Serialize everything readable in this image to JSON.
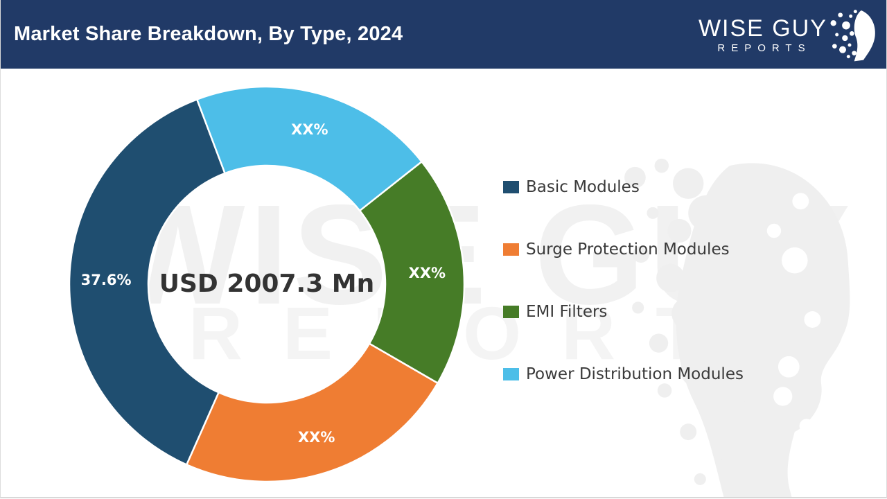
{
  "header": {
    "title": "Market Share Breakdown, By Type, 2024",
    "bg_color": "#213A67",
    "logo": {
      "name": "WISE GUY",
      "sub": "REPORTS"
    }
  },
  "chart_data": {
    "type": "pie",
    "subtype": "donut",
    "title": "Market Share Breakdown, By Type, 2024",
    "center_label": "USD 2007.3 Mn",
    "start_angle_deg": 110.7,
    "direction": "counterclockwise",
    "legend_position": "right",
    "segments": [
      {
        "label": "Basic Modules",
        "display_pct": "37.6%",
        "value_pct": 37.6,
        "color": "#1F4E70"
      },
      {
        "label": "Surge Protection Modules",
        "display_pct": "XX%",
        "value_pct": 23.3,
        "color": "#EF7D33"
      },
      {
        "label": "EMI Filters",
        "display_pct": "XX%",
        "value_pct": 19.0,
        "color": "#467C27"
      },
      {
        "label": "Power Distribution Modules",
        "display_pct": "XX%",
        "value_pct": 20.1,
        "color": "#4DBEE8"
      }
    ]
  },
  "watermark": {
    "line1": "WISE GUY",
    "line2": "REPORTS"
  }
}
